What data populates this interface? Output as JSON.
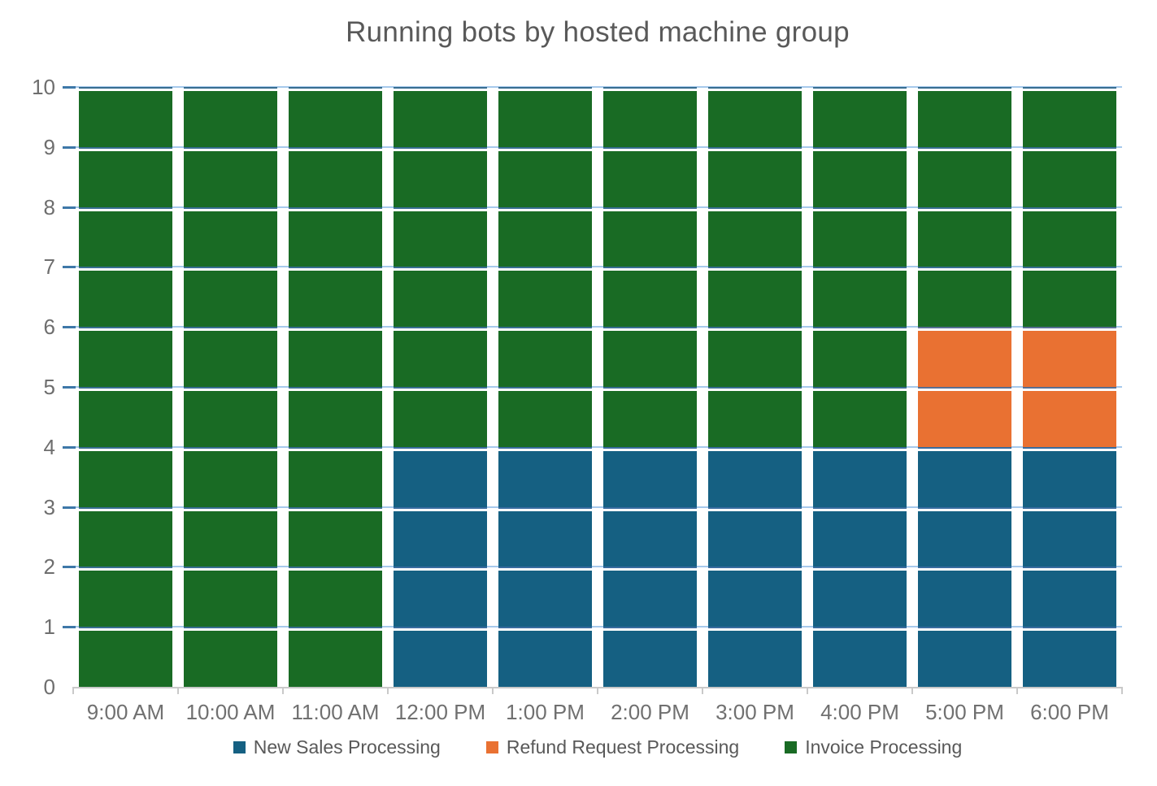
{
  "title": "Running bots by hosted machine group",
  "chart_data": {
    "type": "bar",
    "stacked": true,
    "title": "Running bots by hosted machine group",
    "categories": [
      "9:00 AM",
      "10:00 AM",
      "11:00 AM",
      "12:00 PM",
      "1:00 PM",
      "2:00 PM",
      "3:00 PM",
      "4:00 PM",
      "5:00 PM",
      "6:00 PM"
    ],
    "series": [
      {
        "name": "New Sales Processing",
        "color": "#156082",
        "values": [
          0,
          0,
          0,
          4,
          4,
          4,
          4,
          4,
          4,
          4
        ]
      },
      {
        "name": "Refund Request Processing",
        "color": "#E97132",
        "values": [
          0,
          0,
          0,
          0,
          0,
          0,
          0,
          0,
          2,
          2
        ]
      },
      {
        "name": "Invoice Processing",
        "color": "#196B24",
        "values": [
          10,
          10,
          10,
          6,
          6,
          6,
          6,
          6,
          4,
          4
        ]
      }
    ],
    "xlabel": "",
    "ylabel": "",
    "ylim": [
      0,
      10
    ],
    "yticks": [
      0,
      1,
      2,
      3,
      4,
      5,
      6,
      7,
      8,
      9,
      10
    ],
    "grid": true,
    "legend_position": "bottom"
  },
  "colors": {
    "gridline": "#A6C9EC",
    "grid_tick": "#3E78A8",
    "bar_overlay_line": "rgba(62,110,165,0.85)",
    "axis_line": "#C9C9C9",
    "axis_tick": "#C9C9C9",
    "title_text": "#595959",
    "axis_label_text": "#6E6E6E",
    "legend_text": "#595959"
  }
}
